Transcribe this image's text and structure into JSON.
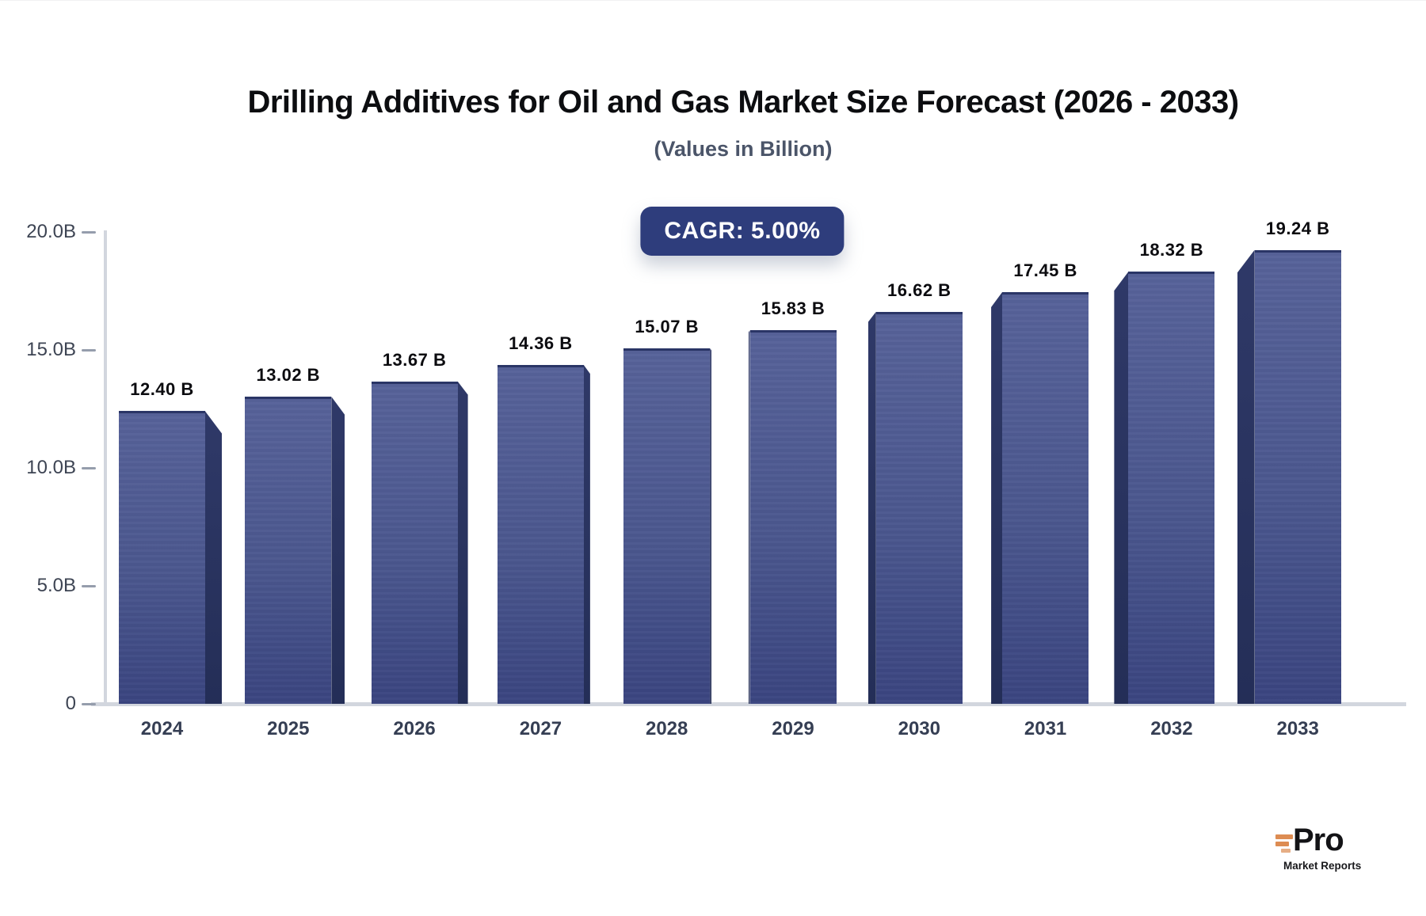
{
  "title": "Drilling Additives for Oil and Gas Market Size Forecast (2026 - 2033)",
  "subtitle": "(Values in Billion)",
  "badge": {
    "label": "CAGR: 5.00%",
    "bg_color": "#2e3d7c",
    "text_color": "#ffffff"
  },
  "chart_data": {
    "type": "bar",
    "categories": [
      "2024",
      "2025",
      "2026",
      "2027",
      "2028",
      "2029",
      "2030",
      "2031",
      "2032",
      "2033"
    ],
    "values": [
      12.4,
      13.02,
      13.67,
      14.36,
      15.07,
      15.83,
      16.62,
      17.45,
      18.32,
      19.24
    ],
    "value_labels": [
      "12.40 B",
      "13.02 B",
      "13.67 B",
      "14.36 B",
      "15.07 B",
      "15.83 B",
      "16.62 B",
      "17.45 B",
      "18.32 B",
      "19.24 B"
    ],
    "title": "Drilling Additives for Oil and Gas Market Size Forecast (2026 - 2033)",
    "xlabel": "",
    "ylabel": "",
    "ylim": [
      0,
      20
    ],
    "y_ticks": [
      {
        "label": "20.0B",
        "value": 20
      },
      {
        "label": "15.0B",
        "value": 15
      },
      {
        "label": "10.0B",
        "value": 10
      },
      {
        "label": "5.0B",
        "value": 5
      },
      {
        "label": "0",
        "value": 0
      }
    ],
    "grid": false,
    "legend": false,
    "bar_style_3d": true,
    "colors": {
      "bar_face_top": "#57629a",
      "bar_face_bottom": "#3a4580",
      "bar_side": "#2a3465",
      "axis": "#d2d6de",
      "tick": "#959dac"
    }
  },
  "logo": {
    "name": "Pro",
    "subtext": "Market Reports",
    "accent_color": "#dd8c52"
  }
}
